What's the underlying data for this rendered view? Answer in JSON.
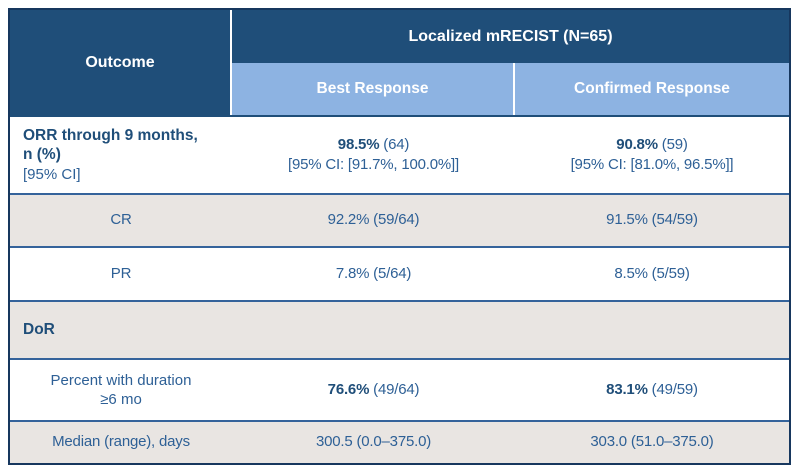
{
  "table": {
    "header": {
      "outcome_label": "Outcome",
      "group_label": "Localized mRECIST (N=65)",
      "best_response_label": "Best Response",
      "confirmed_response_label": "Confirmed Response"
    },
    "rows": {
      "orr": {
        "label_line1": "ORR through 9 months,",
        "label_line2": "n (%)",
        "label_line3": "[95% CI]",
        "best_value": "98.5%",
        "best_count": " (64)",
        "best_ci": "[95% CI: [91.7%, 100.0%]]",
        "confirmed_value": "90.8%",
        "confirmed_count": " (59)",
        "confirmed_ci": "[95% CI: [81.0%, 96.5%]]"
      },
      "cr": {
        "label": "CR",
        "best": "92.2% (59/64)",
        "confirmed": "91.5% (54/59)"
      },
      "pr": {
        "label": "PR",
        "best": "7.8% (5/64)",
        "confirmed": "8.5% (5/59)"
      },
      "dor": {
        "label": "DoR"
      },
      "duration": {
        "label_line1": "Percent with duration",
        "label_line2": "≥6 mo",
        "best_value": "76.6%",
        "best_count": " (49/64)",
        "confirmed_value": "83.1%",
        "confirmed_count": " (49/59)"
      },
      "median": {
        "label": "Median (range), days",
        "best": "300.5 (0.0–375.0)",
        "confirmed": "303.0 (51.0–375.0)"
      }
    },
    "colors": {
      "header_dark_blue": "#1F4E79",
      "header_light_blue": "#8DB3E2",
      "row_shaded": "#E9E5E2",
      "row_divider": "#35639B",
      "text_blue": "#2E6096"
    }
  }
}
